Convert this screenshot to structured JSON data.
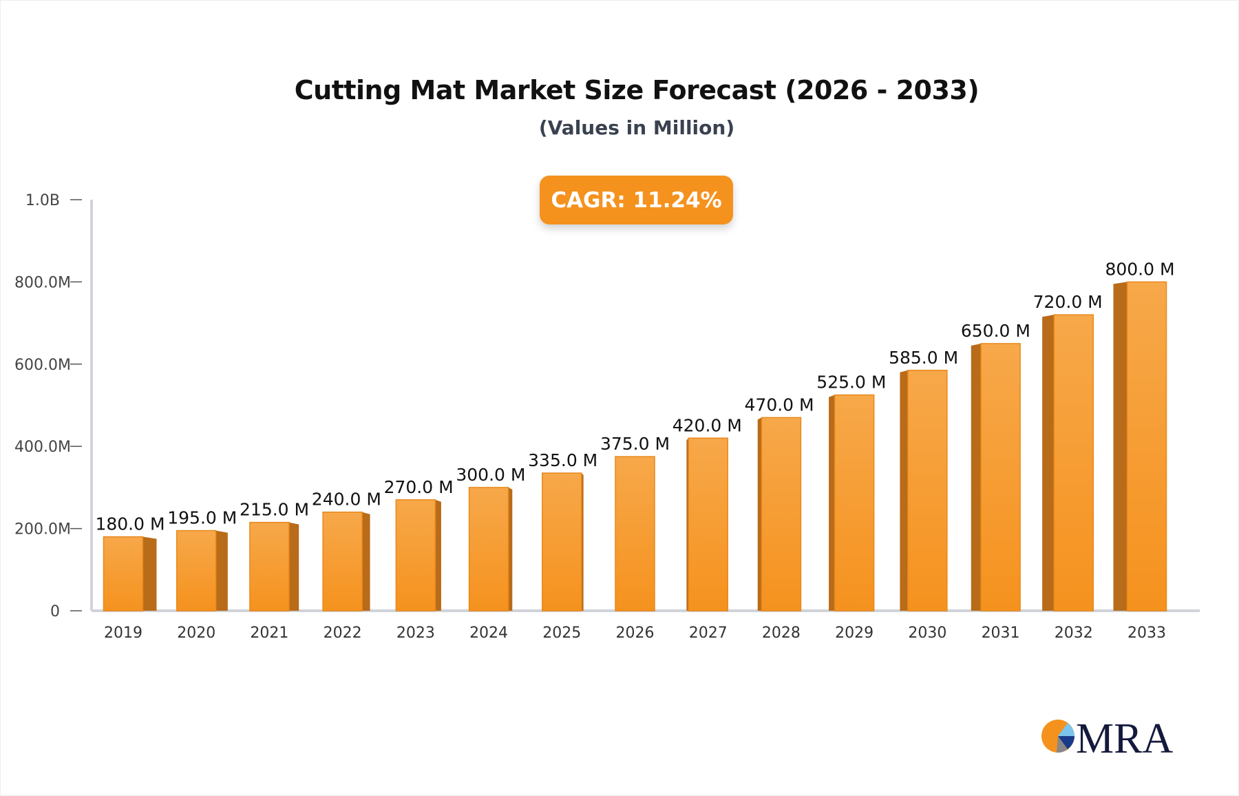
{
  "chart_data": {
    "type": "bar",
    "title": "Cutting Mat Market Size Forecast (2026 - 2033)",
    "subtitle": "(Values in Million)",
    "badge": "CAGR: 11.24%",
    "categories": [
      "2019",
      "2020",
      "2021",
      "2022",
      "2023",
      "2024",
      "2025",
      "2026",
      "2027",
      "2028",
      "2029",
      "2030",
      "2031",
      "2032",
      "2033"
    ],
    "values": [
      180,
      195,
      215,
      240,
      270,
      300,
      335,
      375,
      420,
      470,
      525,
      585,
      650,
      720,
      800
    ],
    "data_labels": [
      "180.0 M",
      "195.0 M",
      "215.0 M",
      "240.0 M",
      "270.0 M",
      "300.0 M",
      "335.0 M",
      "375.0 M",
      "420.0 M",
      "470.0 M",
      "525.0 M",
      "585.0 M",
      "650.0 M",
      "720.0 M",
      "800.0 M"
    ],
    "ylim": [
      0,
      1000
    ],
    "yticks": [
      0,
      200,
      400,
      600,
      800,
      1000
    ],
    "ytick_labels": [
      "0",
      "200.0M",
      "400.0M",
      "600.0M",
      "800.0M",
      "1.0B"
    ],
    "unit": "Million",
    "grid": false,
    "colors": {
      "bar": "#f5921e",
      "bar_side": "#b86b18",
      "badge": "#f5921e"
    }
  },
  "logo": {
    "text": "MRA"
  }
}
